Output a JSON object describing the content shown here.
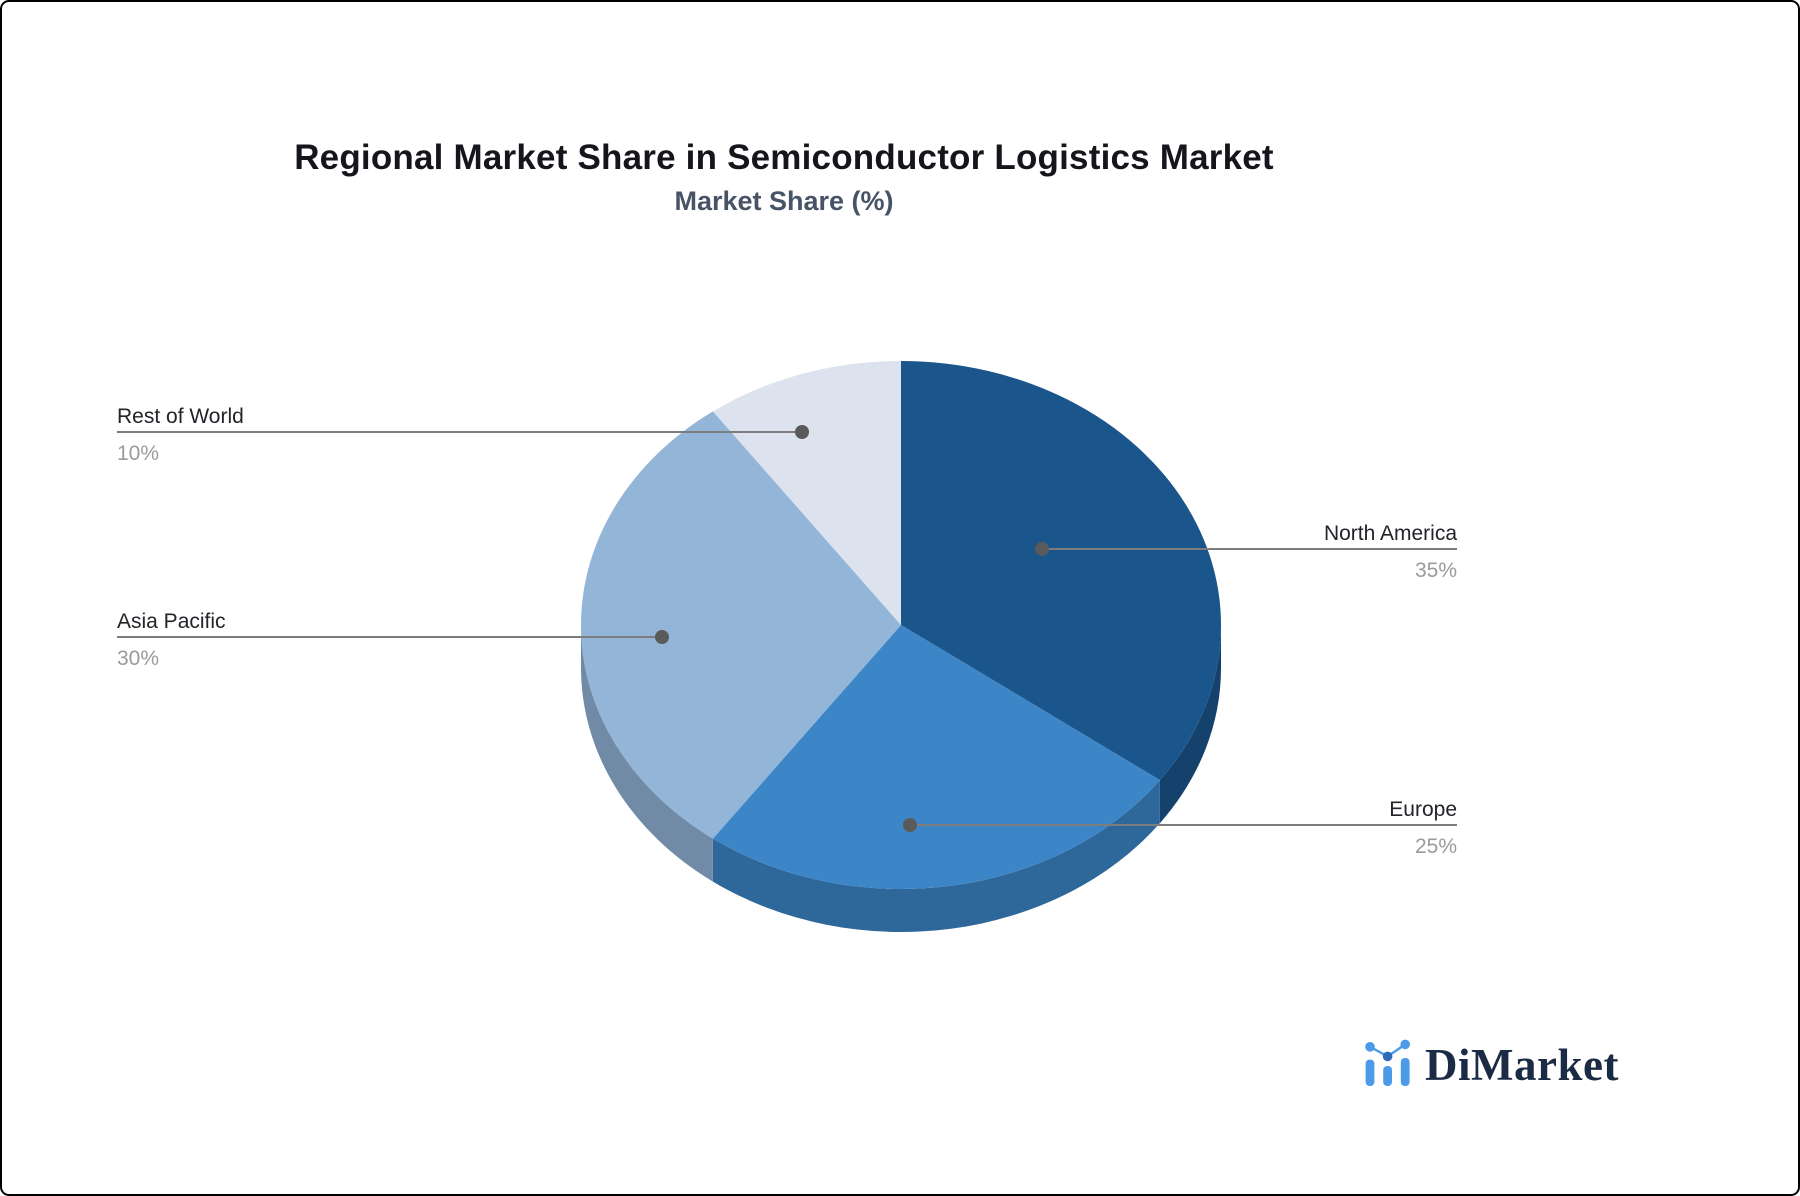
{
  "page": {
    "title": "Regional Market Share in Semiconductor Logistics Market",
    "subtitle": "Market Share (%)"
  },
  "chart_data": {
    "type": "pie",
    "style": "3d",
    "title": "Regional Market Share in Semiconductor Logistics Market",
    "subtitle": "Market Share (%)",
    "unit": "%",
    "start_angle_deg": 0,
    "direction": "clockwise",
    "legend": "none",
    "slices": [
      {
        "label": "North America",
        "value": 35,
        "pct_label": "35%",
        "color": "#1A568C"
      },
      {
        "label": "Europe",
        "value": 25,
        "pct_label": "25%",
        "color": "#3C86C8"
      },
      {
        "label": "Asia Pacific",
        "value": 30,
        "pct_label": "30%",
        "color": "#93B5D8"
      },
      {
        "label": "Rest of World",
        "value": 10,
        "pct_label": "10%",
        "color": "#DCE3EF"
      }
    ],
    "label_line_color": "#7d7d7d",
    "label_dot_color": "#5a5a5a",
    "label_text_color": "#232329",
    "pct_text_color": "#9a9a9a"
  },
  "branding": {
    "logo_text": "DiMarket",
    "logo_icon": "bar-chart-with-trend-line-icon",
    "logo_text_color": "#1b2b45",
    "logo_accent_color": "#4C9BE8",
    "logo_dot_color": "#2E6CB8"
  }
}
